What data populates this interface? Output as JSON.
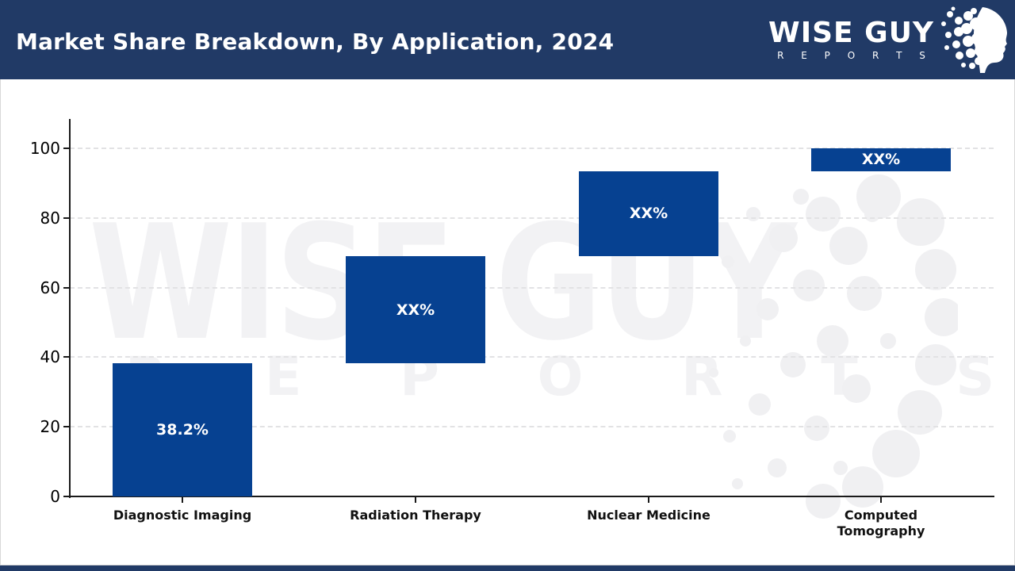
{
  "header": {
    "title": "Market Share Breakdown, By Application, 2024",
    "logo": {
      "name": "WISE GUY",
      "subtitle": "R E P O R T S"
    }
  },
  "watermark": {
    "line1": "WISE GUY",
    "line2": "R E P O R T S"
  },
  "colors": {
    "header_bg": "#213a66",
    "bar": "#064191",
    "bar_label": "#ffffff",
    "axis": "#1a1a1a",
    "grid": "#e2e2e4",
    "watermark": "#f2f2f4"
  },
  "chart_data": {
    "type": "bar",
    "subtype": "floating-waterfall",
    "title": "Market Share Breakdown, By Application, 2024",
    "xlabel": "",
    "ylabel": "",
    "ylim": [
      0,
      100
    ],
    "yticks": [
      0,
      20,
      40,
      60,
      80,
      100
    ],
    "grid": "horizontal-dashed",
    "legend": "none",
    "categories": [
      {
        "name": "Diagnostic Imaging",
        "lines": [
          "Diagnostic Imaging"
        ]
      },
      {
        "name": "Radiation Therapy",
        "lines": [
          "Radiation Therapy"
        ]
      },
      {
        "name": "Nuclear Medicine",
        "lines": [
          "Nuclear Medicine"
        ]
      },
      {
        "name": "Computed Tomography",
        "lines": [
          "Computed",
          "Tomography"
        ]
      }
    ],
    "bars": [
      {
        "category": "Diagnostic Imaging",
        "label": "38.2%",
        "start": 0,
        "end": 38.2
      },
      {
        "category": "Radiation Therapy",
        "label": "XX%",
        "start": 38.2,
        "end": 69
      },
      {
        "category": "Nuclear Medicine",
        "label": "XX%",
        "start": 69,
        "end": 93.5
      },
      {
        "category": "Computed Tomography",
        "label": "XX%",
        "start": 93.5,
        "end": 100
      }
    ]
  }
}
